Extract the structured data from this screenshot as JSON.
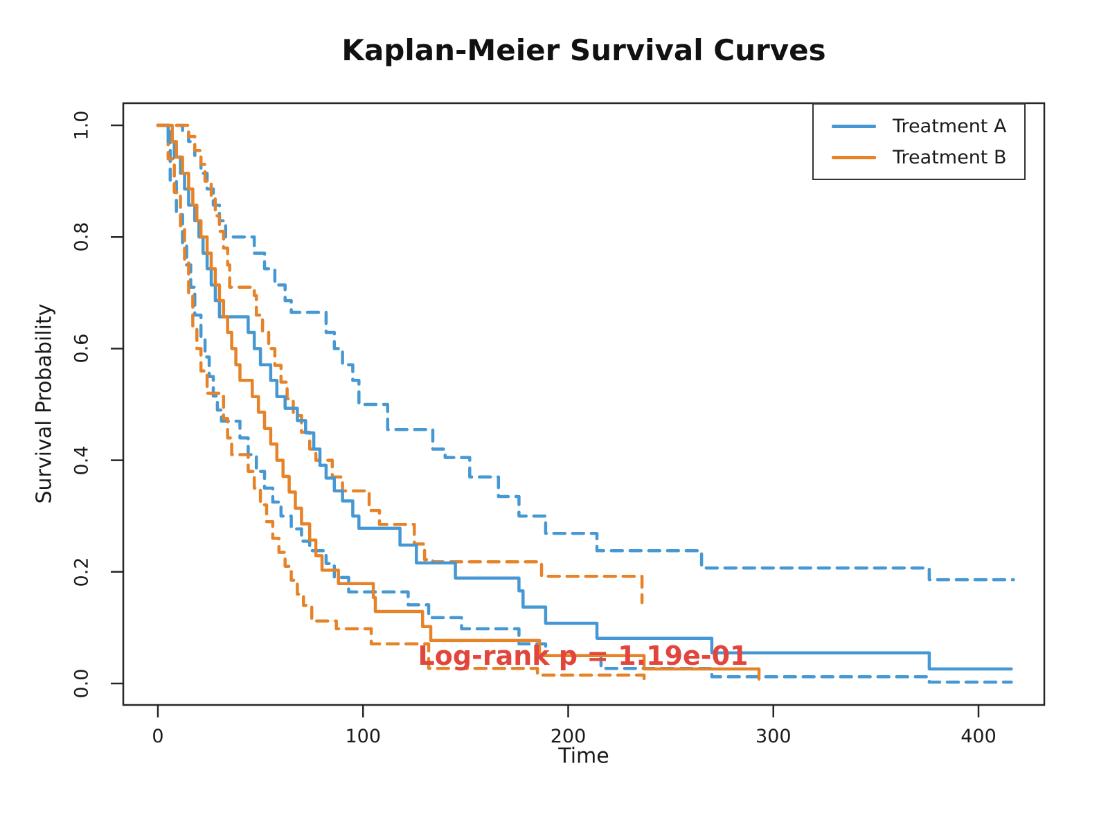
{
  "figure": {
    "title": "Kaplan-Meier Survival Curves"
  },
  "axes": {
    "xlabel": "Time",
    "ylabel": "Survival Probability",
    "x_tick_labels": [
      "0",
      "100",
      "200",
      "300",
      "400"
    ],
    "x_tick_values": [
      0,
      100,
      200,
      300,
      400
    ],
    "y_tick_labels": [
      "0.0",
      "0.2",
      "0.4",
      "0.6",
      "0.8",
      "1.0"
    ],
    "y_tick_values": [
      0.0,
      0.2,
      0.4,
      0.6,
      0.8,
      1.0
    ]
  },
  "legend": {
    "items": [
      {
        "label": "Treatment A",
        "color": "#4598d3"
      },
      {
        "label": "Treatment B",
        "color": "#e68328"
      }
    ]
  },
  "annotation": {
    "text": "Log-rank p = 1.19e-01",
    "color": "#e2453c"
  },
  "colors": {
    "treatment_a": "#4598d3",
    "treatment_b": "#e68328",
    "axis": "#262626"
  },
  "chart_data": {
    "type": "line",
    "subtype": "kaplan_meier_step",
    "title": "Kaplan-Meier Survival Curves",
    "xlabel": "Time",
    "ylabel": "Survival Probability",
    "xlim": [
      -14,
      432
    ],
    "ylim": [
      -0.04,
      1.04
    ],
    "grid": false,
    "legend_position": "upper right",
    "annotation_text": "Log-rank p = 1.19e-01",
    "series": [
      {
        "name": "Treatment A",
        "color": "#4598d3",
        "style": "solid",
        "points": [
          [
            0,
            1.0
          ],
          [
            5,
            0.971
          ],
          [
            8,
            0.943
          ],
          [
            11,
            0.914
          ],
          [
            13,
            0.886
          ],
          [
            15,
            0.857
          ],
          [
            18,
            0.829
          ],
          [
            20,
            0.8
          ],
          [
            22,
            0.771
          ],
          [
            24,
            0.743
          ],
          [
            26,
            0.714
          ],
          [
            28,
            0.686
          ],
          [
            30,
            0.657
          ],
          [
            44,
            0.629
          ],
          [
            47,
            0.6
          ],
          [
            50,
            0.571
          ],
          [
            55,
            0.543
          ],
          [
            58,
            0.514
          ],
          [
            62,
            0.493
          ],
          [
            68,
            0.471
          ],
          [
            72,
            0.449
          ],
          [
            76,
            0.42
          ],
          [
            79,
            0.391
          ],
          [
            82,
            0.368
          ],
          [
            86,
            0.345
          ],
          [
            90,
            0.327
          ],
          [
            95,
            0.3
          ],
          [
            98,
            0.278
          ],
          [
            118,
            0.248
          ],
          [
            126,
            0.216
          ],
          [
            145,
            0.189
          ],
          [
            176,
            0.166
          ],
          [
            178,
            0.137
          ],
          [
            189,
            0.108
          ],
          [
            214,
            0.081
          ],
          [
            270,
            0.055
          ],
          [
            376,
            0.026
          ],
          [
            416,
            0.026
          ]
        ]
      },
      {
        "name": "Treatment A upper 95% CI",
        "color": "#4598d3",
        "style": "dashed",
        "points": [
          [
            0,
            1.0
          ],
          [
            12,
            0.99
          ],
          [
            15,
            0.971
          ],
          [
            18,
            0.943
          ],
          [
            21,
            0.914
          ],
          [
            24,
            0.886
          ],
          [
            27,
            0.857
          ],
          [
            30,
            0.829
          ],
          [
            33,
            0.8
          ],
          [
            47,
            0.771
          ],
          [
            52,
            0.743
          ],
          [
            57,
            0.714
          ],
          [
            62,
            0.686
          ],
          [
            65,
            0.665
          ],
          [
            82,
            0.629
          ],
          [
            86,
            0.6
          ],
          [
            90,
            0.571
          ],
          [
            95,
            0.543
          ],
          [
            98,
            0.5
          ],
          [
            112,
            0.455
          ],
          [
            134,
            0.42
          ],
          [
            140,
            0.405
          ],
          [
            152,
            0.37
          ],
          [
            166,
            0.335
          ],
          [
            176,
            0.3
          ],
          [
            189,
            0.269
          ],
          [
            214,
            0.238
          ],
          [
            265,
            0.207
          ],
          [
            376,
            0.186
          ],
          [
            417,
            0.186
          ]
        ]
      },
      {
        "name": "Treatment A lower 95% CI",
        "color": "#4598d3",
        "style": "dashed",
        "points": [
          [
            0,
            1.0
          ],
          [
            6,
            0.9
          ],
          [
            9,
            0.84
          ],
          [
            12,
            0.79
          ],
          [
            14,
            0.75
          ],
          [
            16,
            0.71
          ],
          [
            18,
            0.66
          ],
          [
            21,
            0.62
          ],
          [
            23,
            0.585
          ],
          [
            25,
            0.55
          ],
          [
            27,
            0.515
          ],
          [
            29,
            0.49
          ],
          [
            31,
            0.47
          ],
          [
            40,
            0.44
          ],
          [
            44,
            0.41
          ],
          [
            48,
            0.38
          ],
          [
            52,
            0.35
          ],
          [
            56,
            0.325
          ],
          [
            60,
            0.3
          ],
          [
            65,
            0.277
          ],
          [
            70,
            0.255
          ],
          [
            74,
            0.238
          ],
          [
            82,
            0.215
          ],
          [
            86,
            0.19
          ],
          [
            93,
            0.164
          ],
          [
            122,
            0.141
          ],
          [
            132,
            0.118
          ],
          [
            148,
            0.098
          ],
          [
            176,
            0.071
          ],
          [
            189,
            0.05
          ],
          [
            216,
            0.027
          ],
          [
            270,
            0.012
          ],
          [
            376,
            0.0025
          ],
          [
            416,
            0.0025
          ]
        ]
      },
      {
        "name": "Treatment B",
        "color": "#e68328",
        "style": "solid",
        "points": [
          [
            0,
            1.0
          ],
          [
            7,
            0.971
          ],
          [
            9,
            0.943
          ],
          [
            12,
            0.914
          ],
          [
            15,
            0.886
          ],
          [
            17,
            0.857
          ],
          [
            19,
            0.829
          ],
          [
            21,
            0.8
          ],
          [
            24,
            0.771
          ],
          [
            26,
            0.743
          ],
          [
            28,
            0.714
          ],
          [
            30,
            0.686
          ],
          [
            32,
            0.657
          ],
          [
            34,
            0.629
          ],
          [
            36,
            0.6
          ],
          [
            38,
            0.571
          ],
          [
            40,
            0.543
          ],
          [
            46,
            0.514
          ],
          [
            49,
            0.486
          ],
          [
            52,
            0.457
          ],
          [
            55,
            0.429
          ],
          [
            58,
            0.4
          ],
          [
            61,
            0.371
          ],
          [
            64,
            0.343
          ],
          [
            67,
            0.314
          ],
          [
            70,
            0.286
          ],
          [
            74,
            0.257
          ],
          [
            77,
            0.229
          ],
          [
            80,
            0.203
          ],
          [
            88,
            0.179
          ],
          [
            105,
            0.154
          ],
          [
            106,
            0.129
          ],
          [
            129,
            0.102
          ],
          [
            133,
            0.077
          ],
          [
            186,
            0.05
          ],
          [
            237,
            0.026
          ],
          [
            293,
            0.008
          ]
        ]
      },
      {
        "name": "Treatment B upper 95% CI",
        "color": "#e68328",
        "style": "dashed",
        "points": [
          [
            0,
            1.0
          ],
          [
            15,
            0.98
          ],
          [
            18,
            0.955
          ],
          [
            21,
            0.93
          ],
          [
            23,
            0.9
          ],
          [
            26,
            0.868
          ],
          [
            28,
            0.838
          ],
          [
            30,
            0.81
          ],
          [
            32,
            0.78
          ],
          [
            34,
            0.75
          ],
          [
            35,
            0.71
          ],
          [
            47,
            0.695
          ],
          [
            48,
            0.66
          ],
          [
            51,
            0.63
          ],
          [
            54,
            0.6
          ],
          [
            57,
            0.57
          ],
          [
            60,
            0.54
          ],
          [
            63,
            0.51
          ],
          [
            66,
            0.48
          ],
          [
            70,
            0.45
          ],
          [
            74,
            0.42
          ],
          [
            77,
            0.4
          ],
          [
            85,
            0.37
          ],
          [
            90,
            0.345
          ],
          [
            103,
            0.31
          ],
          [
            108,
            0.285
          ],
          [
            125,
            0.25
          ],
          [
            130,
            0.222
          ],
          [
            134,
            0.218
          ],
          [
            187,
            0.192
          ],
          [
            236,
            0.145
          ]
        ]
      },
      {
        "name": "Treatment B lower 95% CI",
        "color": "#e68328",
        "style": "dashed",
        "points": [
          [
            0,
            1.0
          ],
          [
            5,
            0.94
          ],
          [
            8,
            0.88
          ],
          [
            11,
            0.82
          ],
          [
            13,
            0.76
          ],
          [
            15,
            0.7
          ],
          [
            17,
            0.64
          ],
          [
            19,
            0.6
          ],
          [
            21,
            0.56
          ],
          [
            24,
            0.52
          ],
          [
            32,
            0.475
          ],
          [
            34,
            0.44
          ],
          [
            36,
            0.41
          ],
          [
            44,
            0.38
          ],
          [
            47,
            0.35
          ],
          [
            50,
            0.32
          ],
          [
            53,
            0.29
          ],
          [
            56,
            0.26
          ],
          [
            59,
            0.235
          ],
          [
            62,
            0.21
          ],
          [
            65,
            0.185
          ],
          [
            68,
            0.16
          ],
          [
            71,
            0.14
          ],
          [
            75,
            0.112
          ],
          [
            87,
            0.098
          ],
          [
            104,
            0.071
          ],
          [
            132,
            0.027
          ],
          [
            185,
            0.015
          ],
          [
            237,
            0.001
          ]
        ]
      }
    ]
  }
}
